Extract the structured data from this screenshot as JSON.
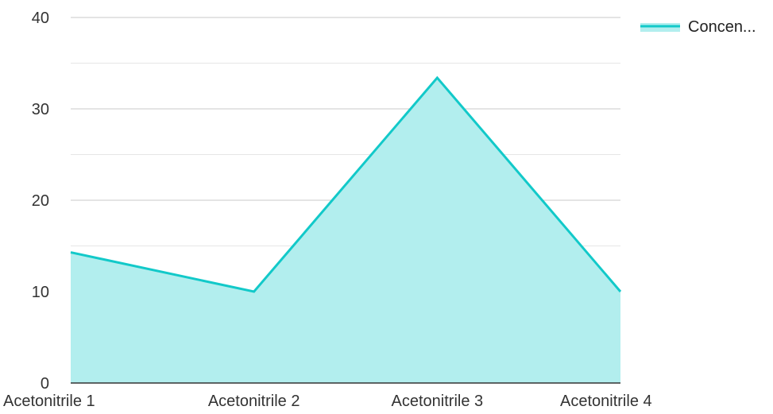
{
  "chart_data": {
    "type": "area",
    "categories": [
      "Acetonitrile 1",
      "Acetonitrile 2",
      "Acetonitrile 3",
      "Acetonitrile 4"
    ],
    "series": [
      {
        "name": "Concen...",
        "values": [
          14.3,
          10,
          33.4,
          10
        ]
      }
    ],
    "ylim": [
      0,
      40
    ],
    "yticks": [
      0,
      10,
      20,
      30,
      40
    ],
    "ytick_labels": [
      "0",
      "10",
      "20",
      "30",
      "40"
    ],
    "minor_gridlines": true,
    "legend_position": "top-right",
    "colors": {
      "line": "#12c9c9",
      "fill": "#b2eeee",
      "grid_major": "#c8c8c8",
      "grid_minor": "#e6e6e6",
      "axis": "#333333"
    }
  }
}
